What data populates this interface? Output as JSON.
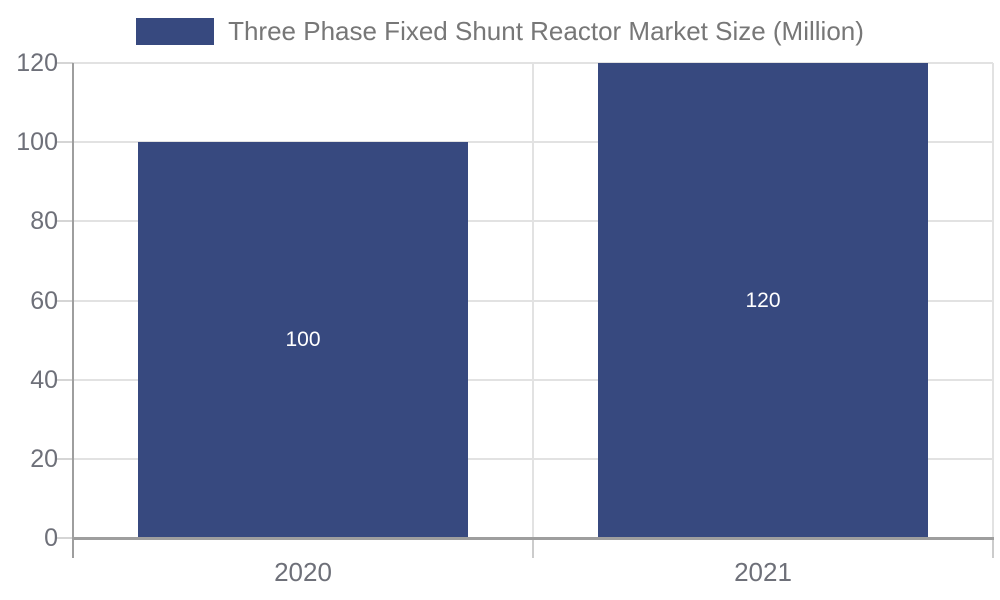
{
  "chart_data": {
    "type": "bar",
    "title": "Three Phase Fixed Shunt Reactor Market Size (Million)",
    "series_name": "Three Phase Fixed Shunt Reactor Market Size (Million)",
    "categories": [
      "2020",
      "2021"
    ],
    "values": [
      100,
      120
    ],
    "bar_labels": [
      "100",
      "120"
    ],
    "xlabel": "",
    "ylabel": "",
    "ylim": [
      0,
      120
    ],
    "yticks": [
      0,
      20,
      40,
      60,
      80,
      100,
      120
    ],
    "grid": true,
    "legend_position": "top-center",
    "value_label_position": "inside-center"
  },
  "colors": {
    "bar": "#37497F",
    "bar_label": "#FFFFFF",
    "grid_line": "#E2E2E2",
    "axis_line": "#9E9E9E",
    "tick": "#D5D5D5",
    "x_tick": "#CCCCCC",
    "axis_label": "#6E7079",
    "legend_text": "#777777",
    "background": "#FFFFFF"
  }
}
